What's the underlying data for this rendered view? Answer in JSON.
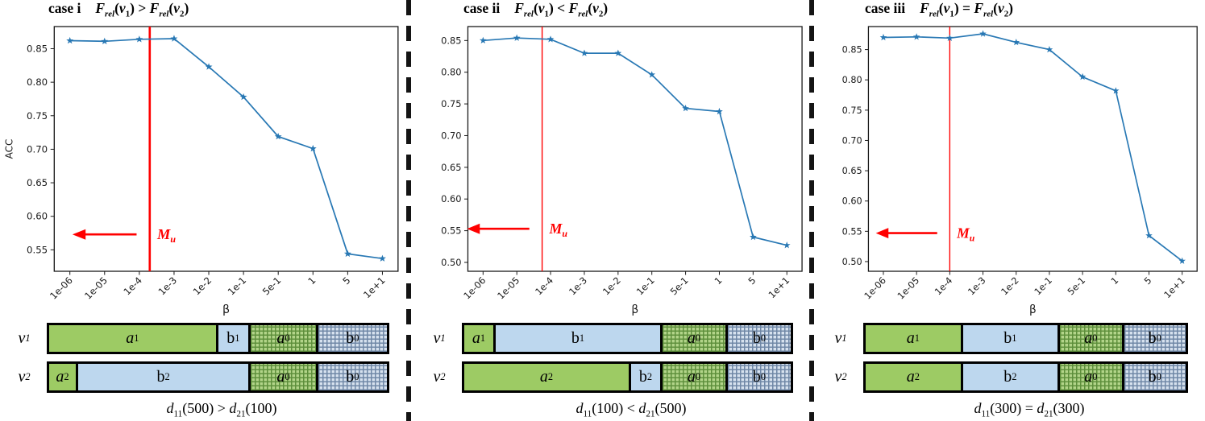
{
  "colors": {
    "series_line": "#2878b4",
    "annotation_red": "#ff0000",
    "bar_green": "#9dcb64",
    "bar_blue": "#bdd7ee",
    "axis_black": "#1a1a1a"
  },
  "chart_data": [
    {
      "type": "line",
      "title_case": "case i",
      "x_categories": [
        "1e-06",
        "1e-05",
        "1e-4",
        "1e-3",
        "1e-2",
        "1e-1",
        "5e-1",
        "1",
        "5",
        "1e+1"
      ],
      "values": [
        0.862,
        0.861,
        0.864,
        0.865,
        0.823,
        0.778,
        0.719,
        0.701,
        0.544,
        0.537
      ],
      "xlabel": "β",
      "ylabel": "ACC",
      "y_ticks": [
        0.55,
        0.6,
        0.65,
        0.7,
        0.75,
        0.8,
        0.85
      ],
      "ylim": [
        0.518,
        0.883
      ],
      "grid": false,
      "legend": "none",
      "marker": "star",
      "vline_beta_index": 2.3,
      "vline_width": 2.6,
      "arrow_y_value": 0.573,
      "annotation_main": "M",
      "annotation_sub": "u"
    },
    {
      "type": "line",
      "title_case": "case ii",
      "x_categories": [
        "1e-06",
        "1e-05",
        "1e-4",
        "1e-3",
        "1e-2",
        "1e-1",
        "5e-1",
        "1",
        "5",
        "1e+1"
      ],
      "values": [
        0.85,
        0.854,
        0.852,
        0.83,
        0.83,
        0.796,
        0.743,
        0.738,
        0.54,
        0.527
      ],
      "xlabel": "β",
      "ylabel": "",
      "y_ticks": [
        0.5,
        0.55,
        0.6,
        0.65,
        0.7,
        0.75,
        0.8,
        0.85
      ],
      "ylim": [
        0.486,
        0.872
      ],
      "grid": false,
      "legend": "none",
      "marker": "star",
      "vline_beta_index": 1.75,
      "vline_width": 1.4,
      "arrow_y_value": 0.553,
      "annotation_main": "M",
      "annotation_sub": "u"
    },
    {
      "type": "line",
      "title_case": "case iii",
      "x_categories": [
        "1e-06",
        "1e-05",
        "1e-4",
        "1e-3",
        "1e-2",
        "1e-1",
        "5e-1",
        "1",
        "5",
        "1e+1"
      ],
      "values": [
        0.87,
        0.871,
        0.869,
        0.876,
        0.862,
        0.85,
        0.805,
        0.782,
        0.543,
        0.501
      ],
      "xlabel": "β",
      "ylabel": "",
      "y_ticks": [
        0.5,
        0.55,
        0.6,
        0.65,
        0.7,
        0.75,
        0.8,
        0.85
      ],
      "ylim": [
        0.484,
        0.888
      ],
      "grid": false,
      "legend": "none",
      "marker": "star",
      "vline_beta_index": 2.0,
      "vline_width": 1.4,
      "arrow_y_value": 0.547,
      "annotation_main": "M",
      "annotation_sub": "u"
    }
  ],
  "panels": [
    {
      "case_label": "case i",
      "formula": [
        {
          "t": "F",
          "i": true
        },
        {
          "t": "rel",
          "sub": true,
          "i": true
        },
        {
          "t": "("
        },
        {
          "t": "v",
          "i": true
        },
        {
          "t": "1",
          "sub": true
        },
        {
          "t": ")"
        },
        {
          "t": " > "
        },
        {
          "t": "F",
          "i": true
        },
        {
          "t": "rel",
          "sub": true,
          "i": true
        },
        {
          "t": "("
        },
        {
          "t": "v",
          "i": true
        },
        {
          "t": "2",
          "sub": true
        },
        {
          "t": ")"
        }
      ],
      "bars": {
        "rows": [
          {
            "label": [
              {
                "t": "v",
                "i": true
              },
              {
                "t": "1",
                "sub": true
              }
            ],
            "segments": [
              {
                "label": [
                  {
                    "t": "a",
                    "i": true
                  },
                  {
                    "t": "1",
                    "sub": true
                  }
                ],
                "style": "green",
                "width_pct": 49
              },
              {
                "label": [
                  {
                    "t": "b"
                  },
                  {
                    "t": "1",
                    "sub": true
                  }
                ],
                "style": "blue",
                "width_pct": 10
              },
              {
                "label": [
                  {
                    "t": "a",
                    "i": true
                  },
                  {
                    "t": "0",
                    "sub": true
                  }
                ],
                "style": "green-hatch",
                "width_pct": 20
              },
              {
                "label": [
                  {
                    "t": "b"
                  },
                  {
                    "t": "0",
                    "sub": true
                  }
                ],
                "style": "blue-hatch",
                "width_pct": 21
              }
            ]
          },
          {
            "label": [
              {
                "t": "v",
                "i": true
              },
              {
                "t": "2",
                "sub": true
              }
            ],
            "segments": [
              {
                "label": [
                  {
                    "t": "a",
                    "i": true
                  },
                  {
                    "t": "2",
                    "sub": true
                  }
                ],
                "style": "green",
                "width_pct": 9
              },
              {
                "label": [
                  {
                    "t": "b"
                  },
                  {
                    "t": "2",
                    "sub": true
                  }
                ],
                "style": "blue",
                "width_pct": 50
              },
              {
                "label": [
                  {
                    "t": "a",
                    "i": true
                  },
                  {
                    "t": "0",
                    "sub": true
                  }
                ],
                "style": "green-hatch",
                "width_pct": 20
              },
              {
                "label": [
                  {
                    "t": "b"
                  },
                  {
                    "t": "0",
                    "sub": true
                  }
                ],
                "style": "blue-hatch",
                "width_pct": 21
              }
            ]
          }
        ]
      },
      "caption": [
        {
          "t": "d",
          "i": true
        },
        {
          "t": "11",
          "sub": true
        },
        {
          "t": "(500)"
        },
        {
          "t": " > "
        },
        {
          "t": "d",
          "i": true
        },
        {
          "t": "21",
          "sub": true
        },
        {
          "t": "(100)"
        }
      ]
    },
    {
      "case_label": "case ii",
      "formula": [
        {
          "t": "F",
          "i": true
        },
        {
          "t": "rel",
          "sub": true,
          "i": true
        },
        {
          "t": "("
        },
        {
          "t": "v",
          "i": true
        },
        {
          "t": "1",
          "sub": true
        },
        {
          "t": ")"
        },
        {
          "t": " < "
        },
        {
          "t": "F",
          "i": true
        },
        {
          "t": "rel",
          "sub": true,
          "i": true
        },
        {
          "t": "("
        },
        {
          "t": "v",
          "i": true
        },
        {
          "t": "2",
          "sub": true
        },
        {
          "t": ")"
        }
      ],
      "bars": {
        "rows": [
          {
            "label": [
              {
                "t": "v",
                "i": true
              },
              {
                "t": "1",
                "sub": true
              }
            ],
            "segments": [
              {
                "label": [
                  {
                    "t": "a",
                    "i": true
                  },
                  {
                    "t": "1",
                    "sub": true
                  }
                ],
                "style": "green",
                "width_pct": 10
              },
              {
                "label": [
                  {
                    "t": "b"
                  },
                  {
                    "t": "1",
                    "sub": true
                  }
                ],
                "style": "blue",
                "width_pct": 50
              },
              {
                "label": [
                  {
                    "t": "a",
                    "i": true
                  },
                  {
                    "t": "0",
                    "sub": true
                  }
                ],
                "style": "green-hatch",
                "width_pct": 20
              },
              {
                "label": [
                  {
                    "t": "b"
                  },
                  {
                    "t": "0",
                    "sub": true
                  }
                ],
                "style": "blue-hatch",
                "width_pct": 20
              }
            ]
          },
          {
            "label": [
              {
                "t": "v",
                "i": true
              },
              {
                "t": "2",
                "sub": true
              }
            ],
            "segments": [
              {
                "label": [
                  {
                    "t": "a",
                    "i": true
                  },
                  {
                    "t": "2",
                    "sub": true
                  }
                ],
                "style": "green",
                "width_pct": 50
              },
              {
                "label": [
                  {
                    "t": "b"
                  },
                  {
                    "t": "2",
                    "sub": true
                  }
                ],
                "style": "blue",
                "width_pct": 10
              },
              {
                "label": [
                  {
                    "t": "a",
                    "i": true
                  },
                  {
                    "t": "0",
                    "sub": true
                  }
                ],
                "style": "green-hatch",
                "width_pct": 20
              },
              {
                "label": [
                  {
                    "t": "b"
                  },
                  {
                    "t": "0",
                    "sub": true
                  }
                ],
                "style": "blue-hatch",
                "width_pct": 20
              }
            ]
          }
        ]
      },
      "caption": [
        {
          "t": "d",
          "i": true
        },
        {
          "t": "11",
          "sub": true
        },
        {
          "t": "(100)"
        },
        {
          "t": " < "
        },
        {
          "t": "d",
          "i": true
        },
        {
          "t": "21",
          "sub": true
        },
        {
          "t": "(500)"
        }
      ]
    },
    {
      "case_label": "case iii",
      "formula": [
        {
          "t": "F",
          "i": true
        },
        {
          "t": "rel",
          "sub": true,
          "i": true
        },
        {
          "t": "("
        },
        {
          "t": "v",
          "i": true
        },
        {
          "t": "1",
          "sub": true
        },
        {
          "t": ")"
        },
        {
          "t": " = "
        },
        {
          "t": "F",
          "i": true
        },
        {
          "t": "rel",
          "sub": true,
          "i": true
        },
        {
          "t": "("
        },
        {
          "t": "v",
          "i": true
        },
        {
          "t": "2",
          "sub": true
        },
        {
          "t": ")"
        }
      ],
      "bars": {
        "rows": [
          {
            "label": [
              {
                "t": "v",
                "i": true
              },
              {
                "t": "1",
                "sub": true
              }
            ],
            "segments": [
              {
                "label": [
                  {
                    "t": "a",
                    "i": true
                  },
                  {
                    "t": "1",
                    "sub": true
                  }
                ],
                "style": "green",
                "width_pct": 30
              },
              {
                "label": [
                  {
                    "t": "b"
                  },
                  {
                    "t": "1",
                    "sub": true
                  }
                ],
                "style": "blue",
                "width_pct": 30
              },
              {
                "label": [
                  {
                    "t": "a",
                    "i": true
                  },
                  {
                    "t": "0",
                    "sub": true
                  }
                ],
                "style": "green-hatch",
                "width_pct": 20
              },
              {
                "label": [
                  {
                    "t": "b"
                  },
                  {
                    "t": "0",
                    "sub": true
                  }
                ],
                "style": "blue-hatch",
                "width_pct": 20
              }
            ]
          },
          {
            "label": [
              {
                "t": "v",
                "i": true
              },
              {
                "t": "2",
                "sub": true
              }
            ],
            "segments": [
              {
                "label": [
                  {
                    "t": "a",
                    "i": true
                  },
                  {
                    "t": "2",
                    "sub": true
                  }
                ],
                "style": "green",
                "width_pct": 30
              },
              {
                "label": [
                  {
                    "t": "b"
                  },
                  {
                    "t": "2",
                    "sub": true
                  }
                ],
                "style": "blue",
                "width_pct": 30
              },
              {
                "label": [
                  {
                    "t": "a",
                    "i": true
                  },
                  {
                    "t": "0",
                    "sub": true
                  }
                ],
                "style": "green-hatch",
                "width_pct": 20
              },
              {
                "label": [
                  {
                    "t": "b"
                  },
                  {
                    "t": "0",
                    "sub": true
                  }
                ],
                "style": "blue-hatch",
                "width_pct": 20
              }
            ]
          }
        ]
      },
      "caption": [
        {
          "t": "d",
          "i": true
        },
        {
          "t": "11",
          "sub": true
        },
        {
          "t": "(300)"
        },
        {
          "t": " = "
        },
        {
          "t": "d",
          "i": true
        },
        {
          "t": "21",
          "sub": true
        },
        {
          "t": "(300)"
        }
      ]
    }
  ]
}
